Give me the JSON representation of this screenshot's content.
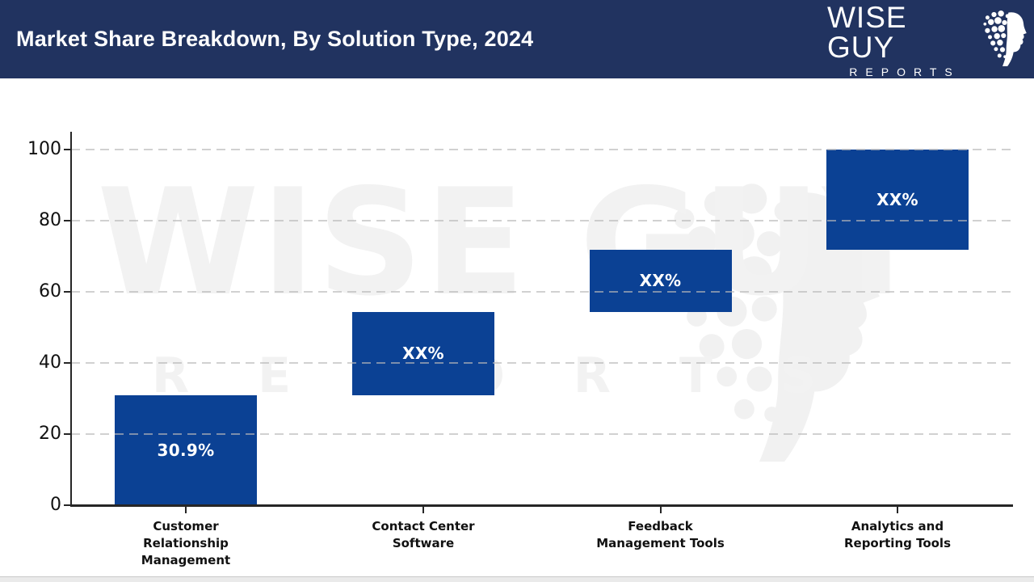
{
  "header": {
    "title": "Market Share Breakdown, By Solution Type, 2024",
    "logo": {
      "line1": "WISE GUY",
      "line2": "REPORTS"
    }
  },
  "watermark": {
    "line1": "WISE GUY",
    "line2": "R E P O R T S"
  },
  "colors": {
    "header_bg": "#213360",
    "bar_blue": "#0b4194",
    "axis": "#262626",
    "gridline": "#d1d1d1",
    "value_label_text": "#ffffff",
    "watermark": "#f2f2f2"
  },
  "chart_data": {
    "type": "bar",
    "subtype": "waterfall",
    "title": "Market Share Breakdown, By Solution Type, 2024",
    "xlabel": "",
    "ylabel": "",
    "ylim": [
      0,
      105
    ],
    "grid": "dashed-horizontal",
    "legend": "none",
    "y_ticks": [
      0,
      20,
      40,
      60,
      80,
      100
    ],
    "categories": [
      "Customer Relationship Management",
      "Contact Center Software",
      "Feedback Management Tools",
      "Analytics and Reporting Tools"
    ],
    "category_label_lines": [
      [
        "Customer",
        "Relationship",
        "Management"
      ],
      [
        "Contact Center",
        "Software"
      ],
      [
        "Feedback",
        "Management Tools"
      ],
      [
        "Analytics and",
        "Reporting Tools"
      ]
    ],
    "bars": [
      {
        "start": 0,
        "end": 30.9,
        "segment_value": 30.9,
        "value_label": "30.9%"
      },
      {
        "start": 30.9,
        "end": 54.4,
        "segment_value": 23.5,
        "value_label": "XX%"
      },
      {
        "start": 54.4,
        "end": 71.8,
        "segment_value": 17.4,
        "value_label": "XX%"
      },
      {
        "start": 71.8,
        "end": 100,
        "segment_value": 28.2,
        "value_label": "XX%"
      }
    ]
  }
}
